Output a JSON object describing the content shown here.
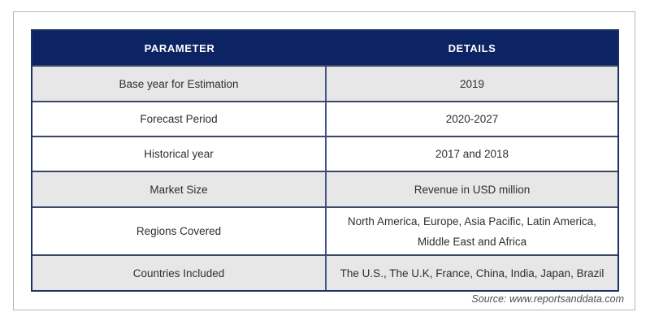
{
  "table": {
    "header": {
      "parameter": "PARAMETER",
      "details": "DETAILS"
    },
    "rows": [
      {
        "parameter": "Base year for Estimation",
        "details": "2019",
        "shaded": true
      },
      {
        "parameter": "Forecast Period",
        "details": "2020-2027",
        "shaded": false
      },
      {
        "parameter": "Historical year",
        "details": "2017 and 2018",
        "shaded": false
      },
      {
        "parameter": "Market Size",
        "details": "Revenue in USD million",
        "shaded": true
      },
      {
        "parameter": "Regions Covered",
        "details": "North America, Europe, Asia Pacific, Latin America, Middle East and Africa",
        "shaded": false
      },
      {
        "parameter": "Countries Included",
        "details": "The U.S., The  U.K, France, China, India, Japan, Brazil",
        "shaded": true
      }
    ],
    "colors": {
      "header_bg": "#0c2463",
      "header_text": "#ffffff",
      "shaded_row_bg": "#e7e7e7",
      "plain_row_bg": "#ffffff",
      "outer_border": "#1a3263",
      "vertical_divider": "#42548a",
      "horizontal_divider": "#3d4766",
      "cell_text": "#2f2f2f",
      "frame_border": "#b5b5b5"
    }
  },
  "source": {
    "label": "Source: www.reportsanddata.com"
  }
}
